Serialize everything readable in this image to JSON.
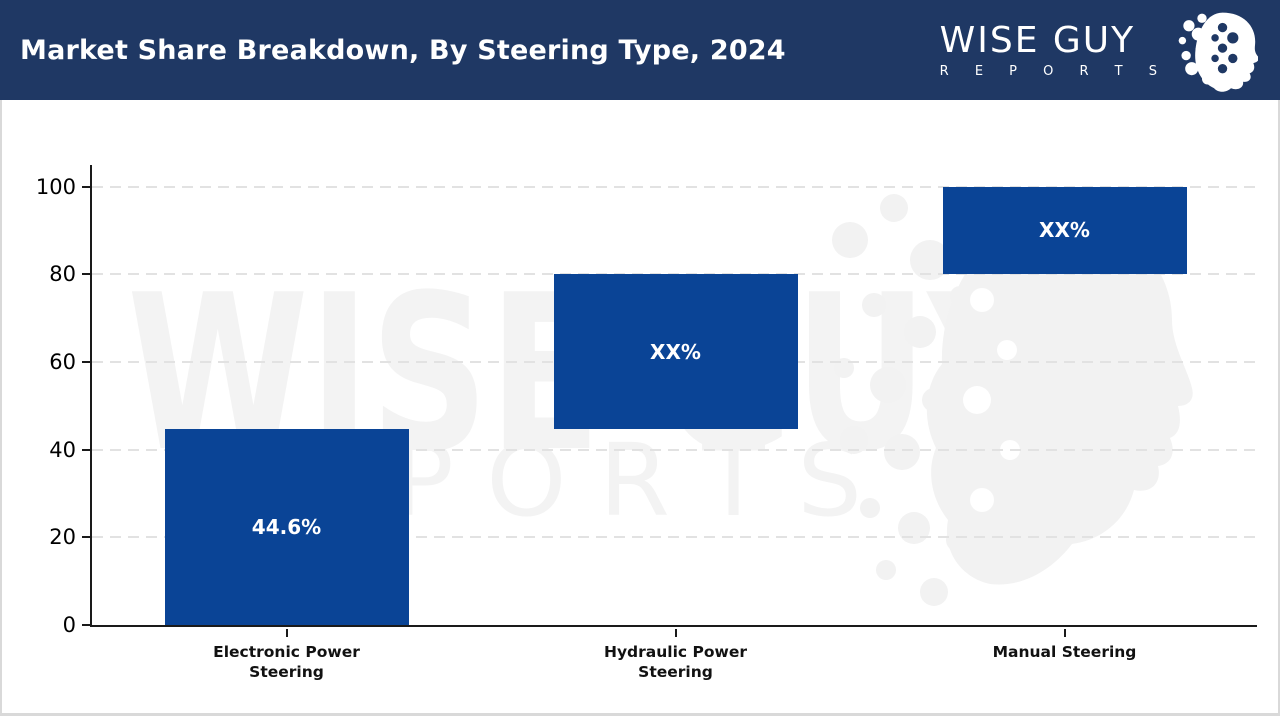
{
  "header": {
    "title": "Market Share Breakdown, By Steering Type, 2024",
    "logo": {
      "line1": "WISE GUY",
      "line2": "R E P O R T S"
    }
  },
  "watermark": {
    "line1": "WISE GUY",
    "line2": "R E P O R T S"
  },
  "colors": {
    "header_bg": "#1f3864",
    "bar": "#0a4496",
    "bar_label": "#ffffff",
    "grid": "#e2e2e2",
    "axis": "#1a1a1a",
    "watermark": "#f2f2f2",
    "page_border": "#d9d9d9"
  },
  "chart_data": {
    "type": "bar",
    "subtype": "waterfall",
    "title": "Market Share Breakdown, By Steering Type, 2024",
    "categories": [
      "Electronic Power\nSteering",
      "Hydraulic Power\nSteering",
      "Manual Steering"
    ],
    "series": [
      {
        "name": "Market Share",
        "segments": [
          {
            "category": "Electronic Power Steering",
            "from": 0,
            "to": 44.6,
            "label": "44.6%"
          },
          {
            "category": "Hydraulic Power Steering",
            "from": 44.6,
            "to": 80,
            "label": "XX%"
          },
          {
            "category": "Manual Steering",
            "from": 80,
            "to": 100,
            "label": "XX%"
          }
        ]
      }
    ],
    "ylim": [
      0,
      100
    ],
    "yticks": [
      0,
      20,
      40,
      60,
      80,
      100
    ],
    "xlabel": "",
    "ylabel": "",
    "grid": "dashed-horizontal",
    "legend": "none",
    "bar_color": "#0a4496"
  }
}
